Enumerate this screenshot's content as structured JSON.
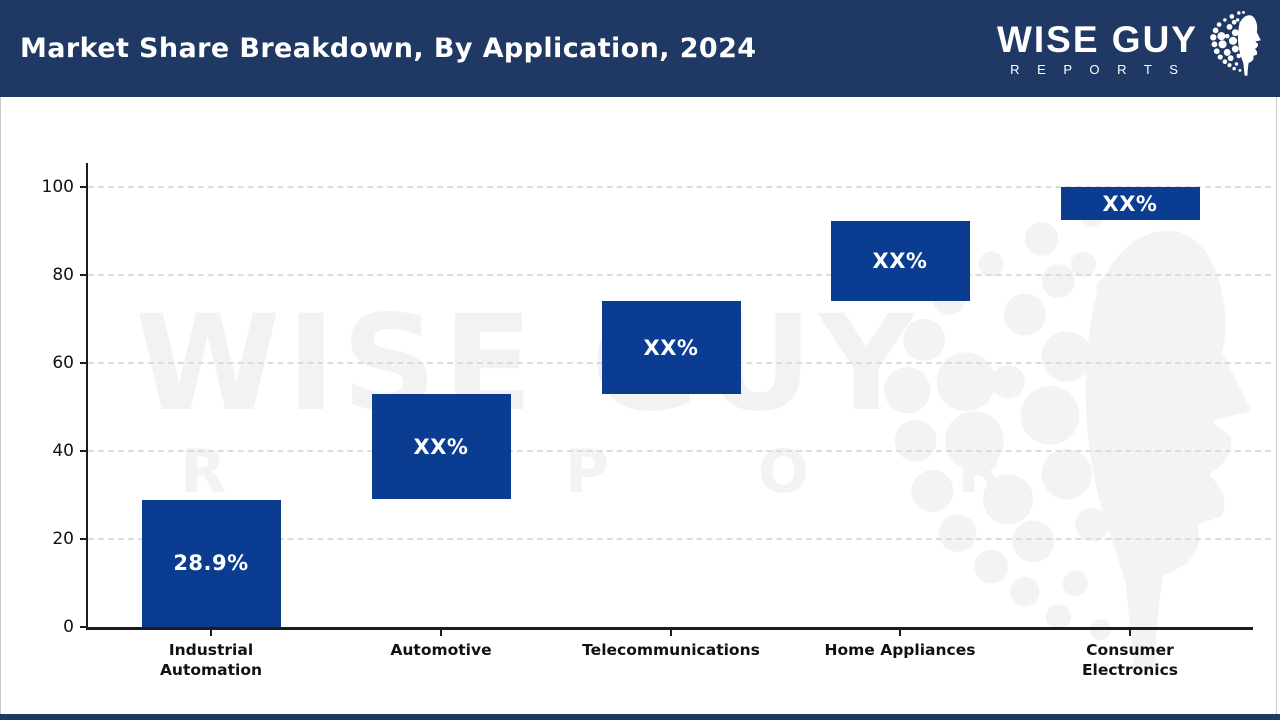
{
  "header": {
    "title": "Market Share Breakdown, By Application, 2024",
    "logo": {
      "name": "WISE GUY",
      "tagline": "R E P O R T S"
    }
  },
  "watermark": {
    "line1": "WISE GUY",
    "line2": "R E P O R T S"
  },
  "chart_data": {
    "type": "bar",
    "subtype": "waterfall-floating-bars",
    "title": "Market Share Breakdown, By Application, 2024",
    "xlabel": "",
    "ylabel": "",
    "ylim": [
      0,
      100
    ],
    "yticks": [
      0,
      20,
      40,
      60,
      80,
      100
    ],
    "grid": "horizontal-dashed",
    "legend": "none",
    "bar_color": "#0a3d92",
    "bar_label_color": "#ffffff",
    "categories": [
      "Industrial Automation",
      "Automotive",
      "Telecommunications",
      "Home Appliances",
      "Consumer Electronics"
    ],
    "category_label_lines": [
      [
        "Industrial",
        "Automation"
      ],
      [
        "Automotive"
      ],
      [
        "Telecommunications"
      ],
      [
        "Home Appliances"
      ],
      [
        "Consumer",
        "Electronics"
      ]
    ],
    "segments": [
      {
        "category": "Industrial Automation",
        "start": 0,
        "end": 28.9,
        "label": "28.9%"
      },
      {
        "category": "Automotive",
        "start": 29,
        "end": 53,
        "label": "XX%"
      },
      {
        "category": "Telecommunications",
        "start": 53,
        "end": 74,
        "label": "XX%"
      },
      {
        "category": "Home Appliances",
        "start": 74,
        "end": 92.3,
        "label": "XX%"
      },
      {
        "category": "Consumer Electronics",
        "start": 92.5,
        "end": 100,
        "label": "XX%"
      }
    ]
  },
  "colors": {
    "header_bg": "#1f3864",
    "footer_bg": "#1f3864",
    "bar": "#0a3d92",
    "axis": "#1c1c1c",
    "grid": "#dcdcdc",
    "text": "#111111",
    "watermark": "#f2f2f2"
  }
}
